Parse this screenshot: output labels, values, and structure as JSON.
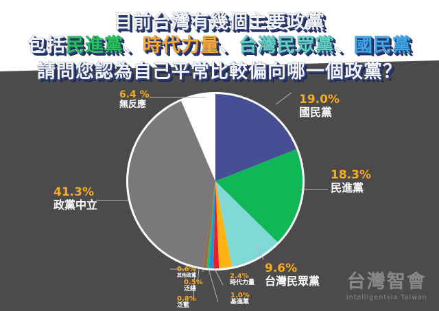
{
  "title": {
    "line1": "目前台灣有幾個主要政黨",
    "line2": {
      "prefix": "包括",
      "party1": "民進黨",
      "sep1": "、",
      "party2": "時代力量",
      "sep2": "、",
      "party3": "台灣民眾黨",
      "sep3": "、",
      "party4": "國民黨"
    },
    "line3": "請問您認為自己平常比較偏向哪一個政黨？"
  },
  "labels": {
    "kmt": {
      "pct": "19.0%",
      "name": "國民黨"
    },
    "dpp": {
      "pct": "18.3%",
      "name": "民進黨"
    },
    "tpp": {
      "pct": "9.6%",
      "name": "台灣民眾黨"
    },
    "npp": {
      "pct": "2.4%",
      "name": "時代力量"
    },
    "tsp": {
      "pct": "1.0%",
      "name": "基進黨"
    },
    "pan_blue": {
      "pct": "0.8%",
      "name": "泛藍"
    },
    "pan_green": {
      "pct": "0.5%",
      "name": "泛綠"
    },
    "other": {
      "pct": "0.6%",
      "name": "其他政黨"
    },
    "neutral": {
      "pct": "41.3%",
      "name": "政黨中立"
    },
    "no_response": {
      "pct": "6.4 %",
      "name": "無反應"
    }
  },
  "logo": {
    "zh": "台灣智會",
    "en": "Intelligentsia Taiwan"
  },
  "colors": {
    "background": "#4d4a4b",
    "kmt": "#474f94",
    "dpp": "#0fb756",
    "tpp": "#7fd9d5",
    "npp": "#fdb515",
    "tsp": "#ee1c25",
    "pan_blue": "#2b8fd8",
    "pan_green": "#2bb673",
    "other": "#a06a3c",
    "neutral": "#7b7879",
    "no_response": "#ffffff",
    "pct_text": "#f5ad1f"
  },
  "chart_data": {
    "type": "pie",
    "title": "目前台灣有幾個主要政黨包括民進黨、時代力量、台灣民眾黨、國民黨 請問您認為自己平常比較偏向哪一個政黨？",
    "start_angle": "12 o'clock, clockwise",
    "categories": [
      "國民黨",
      "民進黨",
      "台灣民眾黨",
      "時代力量",
      "基進黨",
      "泛藍",
      "泛綠",
      "其他政黨",
      "政黨中立",
      "無反應"
    ],
    "values": [
      19.0,
      18.3,
      9.6,
      2.4,
      1.0,
      0.8,
      0.5,
      0.6,
      41.3,
      6.4
    ],
    "unit": "%",
    "colors": [
      "#474f94",
      "#0fb756",
      "#7fd9d5",
      "#fdb515",
      "#ee1c25",
      "#2b8fd8",
      "#2bb673",
      "#a06a3c",
      "#7b7879",
      "#ffffff"
    ],
    "legend": "none (direct labels)",
    "source_logo": "台灣智會 Intelligentsia Taiwan"
  }
}
